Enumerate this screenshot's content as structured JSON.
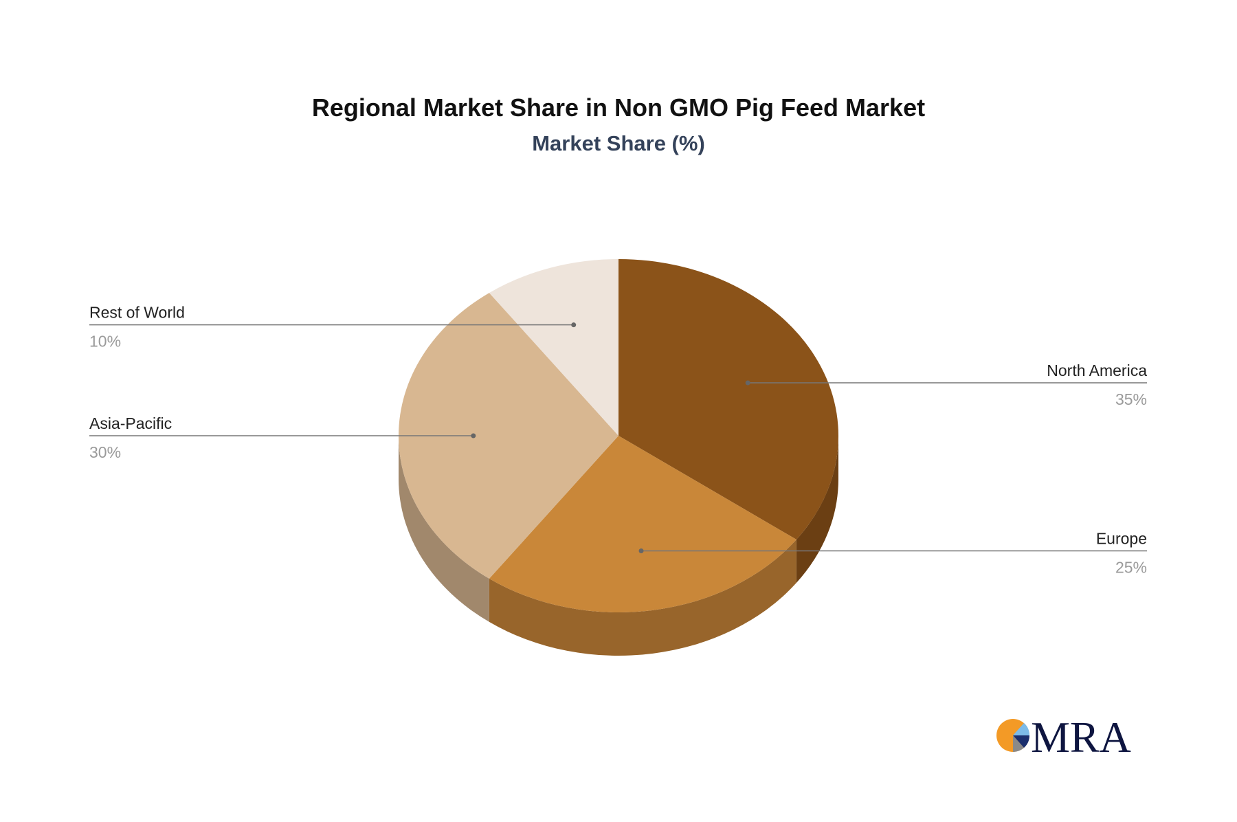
{
  "chart_data": {
    "type": "pie",
    "title": "Regional Market Share in Non GMO Pig Feed Market",
    "subtitle": "Market Share (%)",
    "categories": [
      "North America",
      "Europe",
      "Asia-Pacific",
      "Rest of World"
    ],
    "values": [
      35,
      25,
      30,
      10
    ],
    "value_labels": [
      "35%",
      "25%",
      "30%",
      "10%"
    ],
    "colors": [
      "#8B5319",
      "#C98739",
      "#D8B791",
      "#EEE4DB"
    ],
    "side_colors": [
      "#6B3F13",
      "#98652B",
      "#A1886C",
      "#BDB3AA"
    ],
    "style": "3d"
  },
  "logo": {
    "text": "MRA",
    "colors": [
      "#F39A26",
      "#7DBBE8",
      "#1B2F6E",
      "#8A8A8A"
    ],
    "text_color": "#0E1540"
  }
}
